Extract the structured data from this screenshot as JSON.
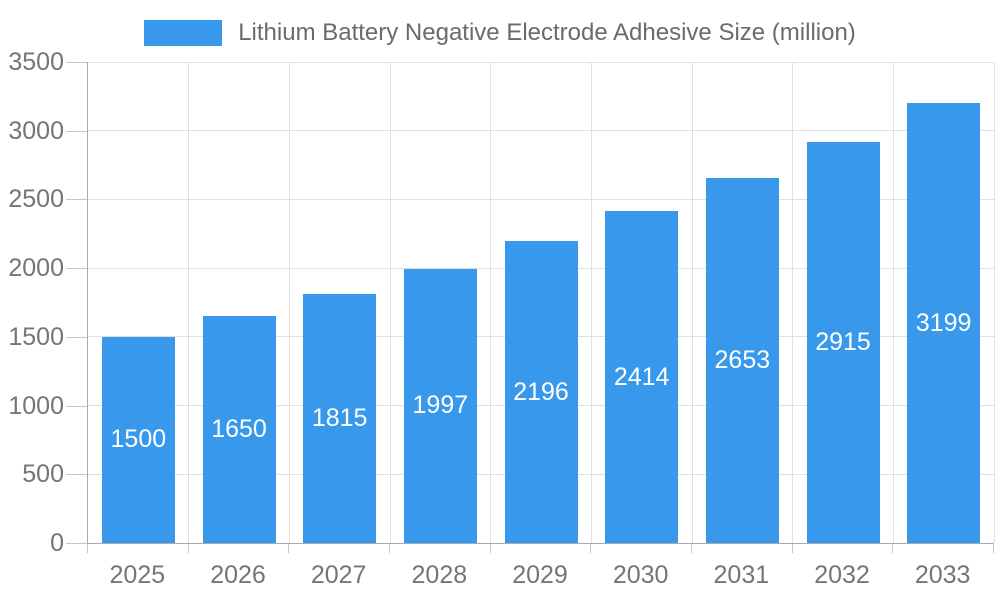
{
  "chart_data": {
    "type": "bar",
    "title": "Lithium Battery Negative Electrode Adhesive Size (million)",
    "categories": [
      "2025",
      "2026",
      "2027",
      "2028",
      "2029",
      "2030",
      "2031",
      "2032",
      "2033"
    ],
    "values": [
      1500,
      1650,
      1815,
      1997,
      2196,
      2414,
      2653,
      2915,
      3199
    ],
    "xlabel": "",
    "ylabel": "",
    "ylim": [
      0,
      3500
    ],
    "yticks": [
      0,
      500,
      1000,
      1500,
      2000,
      2500,
      3000,
      3500
    ],
    "grid": true,
    "legend_position": "top",
    "value_labels": "inside-center",
    "colors": {
      "bar": "#3898EC",
      "value_label": "#FFFFFF",
      "axis_line": "#AAAAAA",
      "gridline": "#E0E0E0",
      "tick": "#C6C6C6",
      "tick_label": "#757575",
      "title": "#6B6B6B",
      "background": "#FFFFFF"
    }
  }
}
